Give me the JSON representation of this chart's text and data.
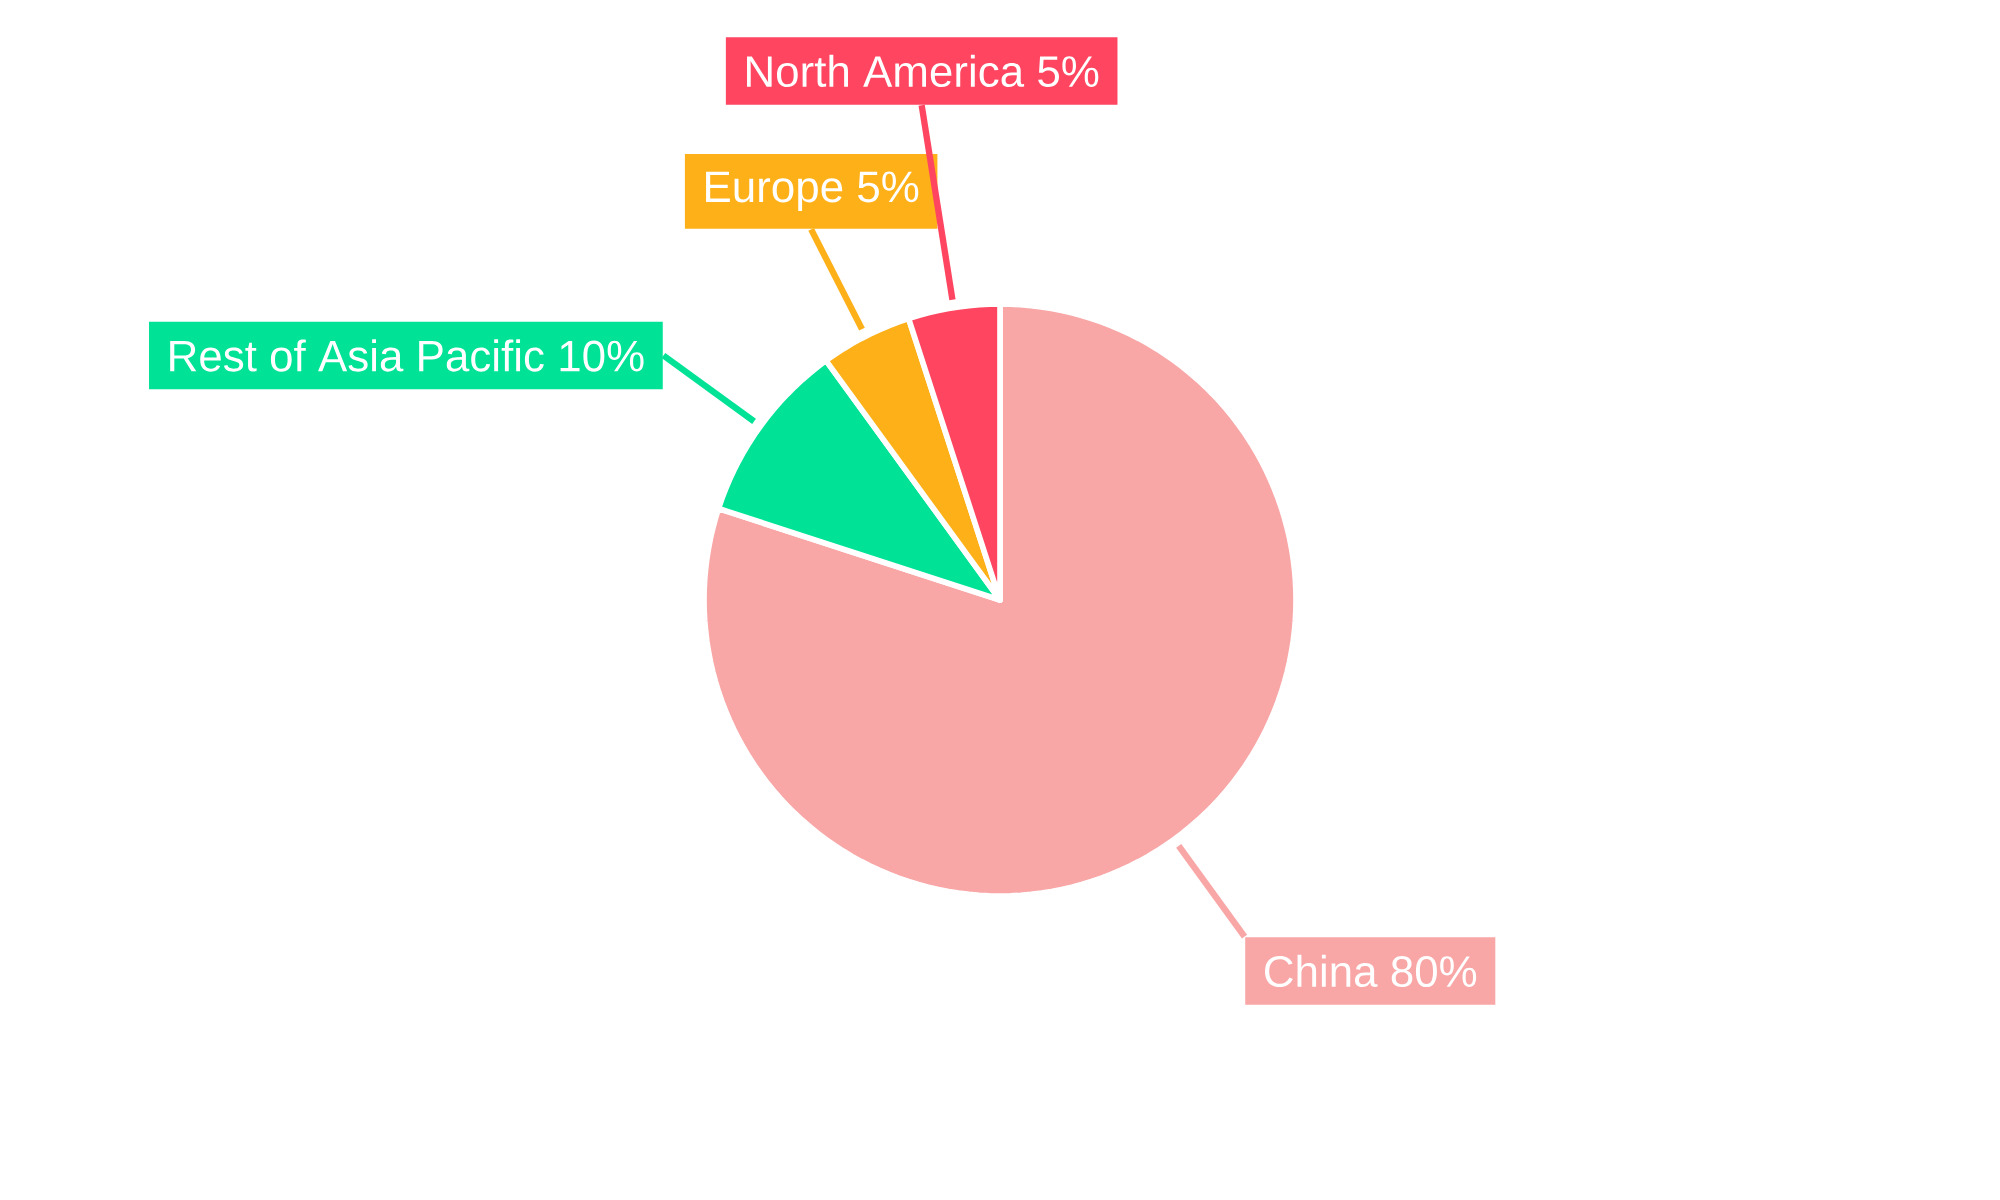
{
  "chart_data": {
    "type": "pie",
    "categories": [
      "China",
      "Rest of Asia Pacific",
      "Europe",
      "North America"
    ],
    "values": [
      80,
      10,
      5,
      5
    ],
    "value_labels": [
      "80%",
      "10%",
      "5%",
      "5%"
    ],
    "colors": [
      "#f9a6a6",
      "#00e396",
      "#feb019",
      "#ff4560"
    ]
  }
}
